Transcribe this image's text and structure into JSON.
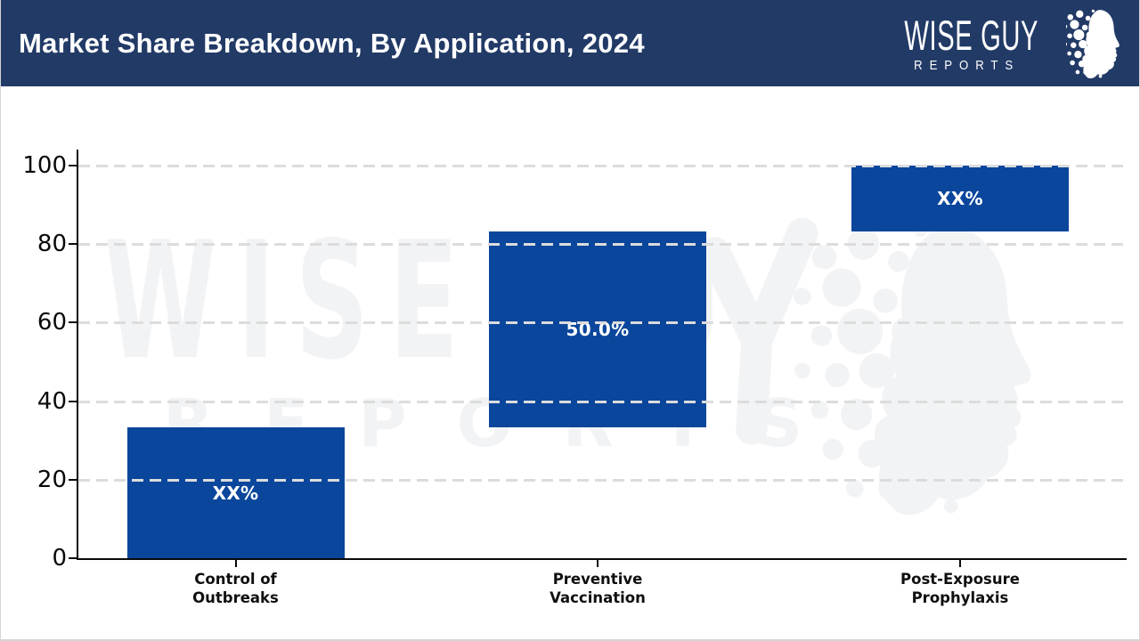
{
  "header": {
    "title": "Market Share Breakdown, By Application, 2024",
    "logo": {
      "primary": "WISE GUY",
      "secondary": "REPORTS"
    }
  },
  "watermark": {
    "primary": "WISE GU",
    "secondary": "REPORTS"
  },
  "chart_data": {
    "type": "bar",
    "variant": "stacked-waterfall",
    "title": "Market Share Breakdown, By Application, 2024",
    "categories": [
      "Control of\nOutbreaks",
      "Preventive\nVaccination",
      "Post-Exposure\nProphylaxis"
    ],
    "bars": [
      {
        "category": "Control of Outbreaks",
        "label": "XX%",
        "start": 0,
        "end": 33.3
      },
      {
        "category": "Preventive Vaccination",
        "label": "50.0%",
        "start": 33.3,
        "end": 83.3
      },
      {
        "category": "Post-Exposure Prophylaxis",
        "label": "XX%",
        "start": 83.3,
        "end": 100
      }
    ],
    "xlabel": "",
    "ylabel": "",
    "ylim": [
      0,
      100
    ],
    "yticks": [
      0,
      20,
      40,
      60,
      80,
      100
    ],
    "grid": "horizontal-dashed",
    "legend": "none",
    "colors": {
      "bar": "#0a469c",
      "bar_label": "#ffffff",
      "header_bg": "#223a66",
      "grid": "#dcdcdc",
      "axis": "#0a0a0a",
      "watermark": "#f2f3f5"
    }
  }
}
